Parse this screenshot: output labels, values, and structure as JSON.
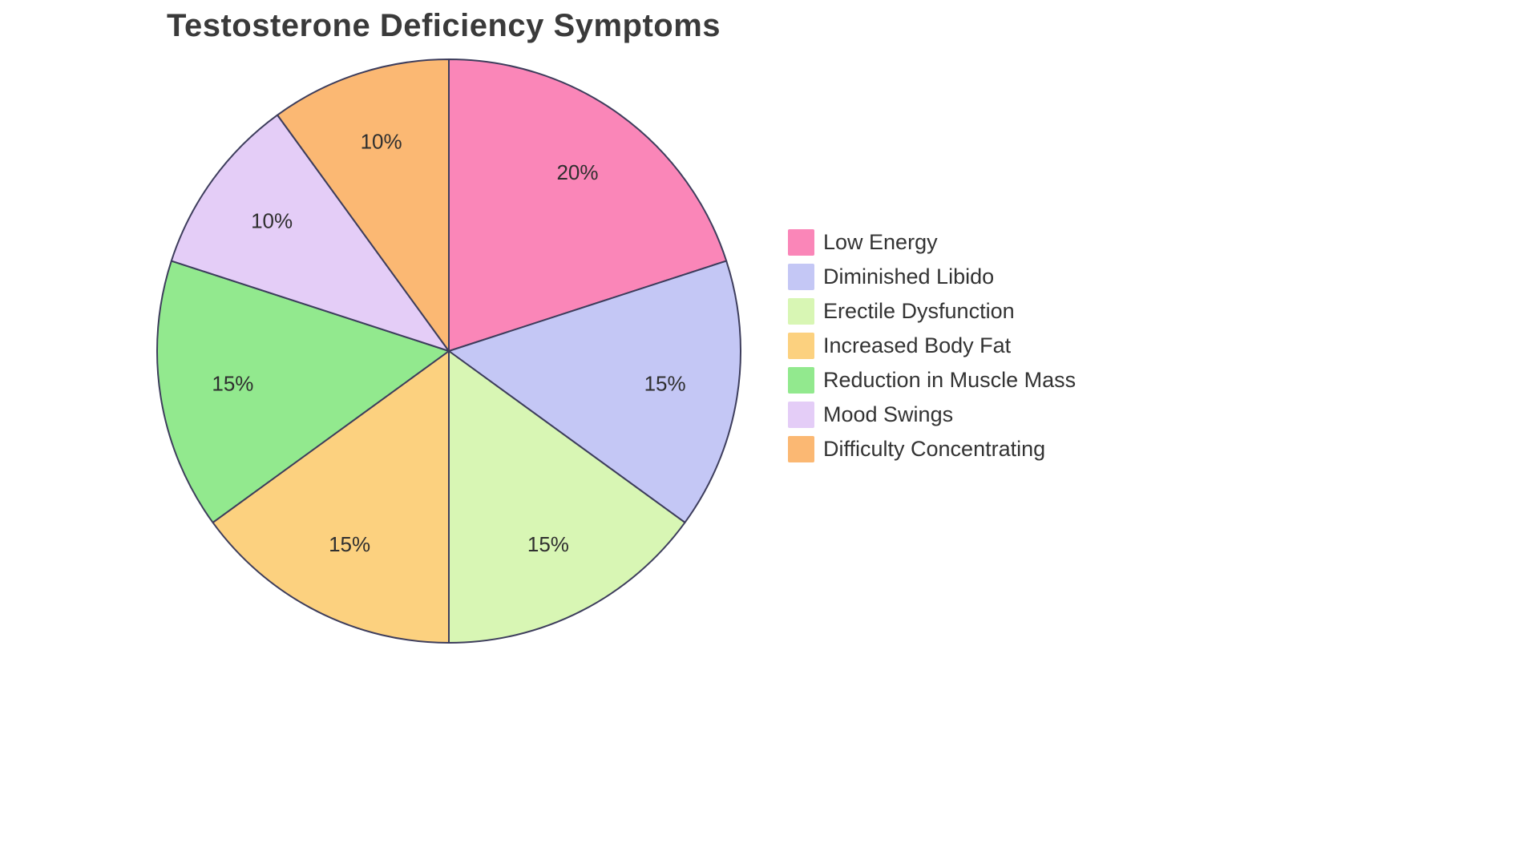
{
  "title": "Testosterone Deficiency Symptoms",
  "colors": {
    "background": "#ffffff",
    "stroke": "#3d3d5c",
    "title_text": "#3a3a3a",
    "slice_label_text": "#2f2f2f",
    "legend_text": "#333333"
  },
  "chart_data": {
    "type": "pie",
    "title": "Testosterone Deficiency Symptoms",
    "start_angle_deg": 0,
    "direction": "clockwise",
    "legend_position": "right",
    "label_radius_ratio": 0.75,
    "slices": [
      {
        "label": "Low Energy",
        "value": 20,
        "display": "20%",
        "color": "#fa86b8"
      },
      {
        "label": "Diminished Libido",
        "value": 15,
        "display": "15%",
        "color": "#c4c7f5"
      },
      {
        "label": "Erectile Dysfunction",
        "value": 15,
        "display": "15%",
        "color": "#d8f6b4"
      },
      {
        "label": "Increased Body Fat",
        "value": 15,
        "display": "15%",
        "color": "#fcd17f"
      },
      {
        "label": "Reduction in Muscle Mass",
        "value": 15,
        "display": "15%",
        "color": "#92e98e"
      },
      {
        "label": "Mood Swings",
        "value": 10,
        "display": "10%",
        "color": "#e4cdf7"
      },
      {
        "label": "Difficulty Concentrating",
        "value": 10,
        "display": "10%",
        "color": "#fbb873"
      }
    ]
  }
}
